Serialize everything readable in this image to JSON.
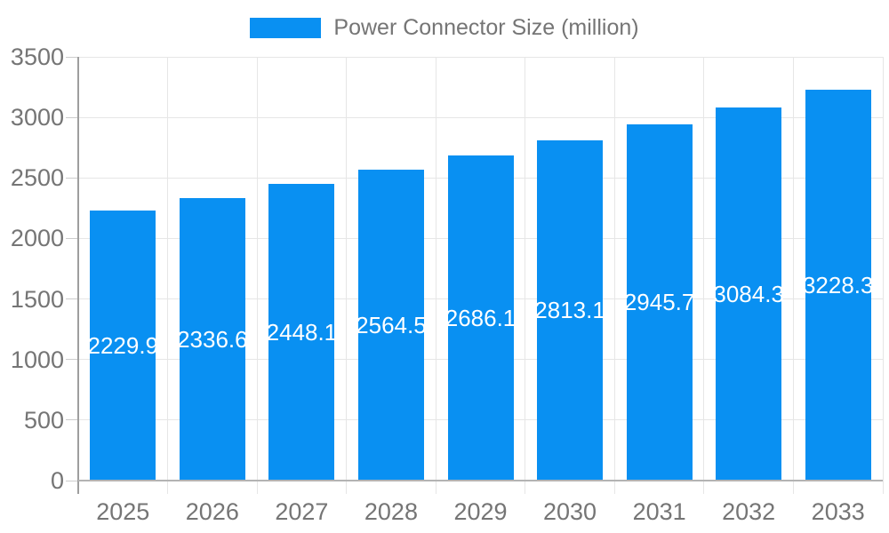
{
  "chart_data": {
    "type": "bar",
    "title": "",
    "legend": "Power Connector Size (million)",
    "legend_position": "top",
    "categories": [
      "2025",
      "2026",
      "2027",
      "2028",
      "2029",
      "2030",
      "2031",
      "2032",
      "2033"
    ],
    "values": [
      2229.9,
      2336.6,
      2448.1,
      2564.5,
      2686.1,
      2813.1,
      2945.7,
      3084.3,
      3228.3
    ],
    "xlabel": "",
    "ylabel": "",
    "ylim": [
      0,
      3500
    ],
    "ytick_step": 500,
    "grid": true,
    "value_labels": "inside-middle",
    "colors": {
      "bar": "#0990f2",
      "grid": "#e6e6e6",
      "axis_line": "#9e9e9e",
      "baseline": "#b3b3b3",
      "tick": "#cccccc",
      "axis_text": "#757575",
      "value_text": "#ffffff"
    }
  }
}
